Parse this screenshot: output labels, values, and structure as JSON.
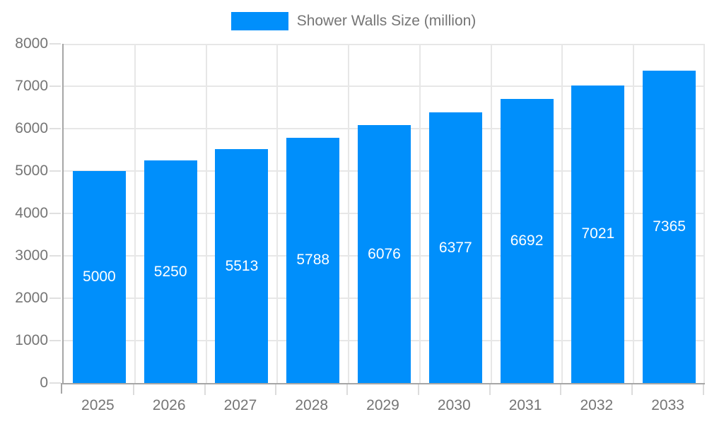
{
  "legend": {
    "label": "Shower Walls Size (million)"
  },
  "colors": {
    "accent": "#008FFB",
    "gridline": "#e7e7e7",
    "axis": "#a6a6a6",
    "tick": "#dcdcdc",
    "axis_label": "#757575",
    "bar_label": "#ffffff",
    "background": "#ffffff"
  },
  "chart_data": {
    "type": "bar",
    "title": "Shower Walls Size (million)",
    "categories": [
      "2025",
      "2026",
      "2027",
      "2028",
      "2029",
      "2030",
      "2031",
      "2032",
      "2033"
    ],
    "series": [
      {
        "name": "Shower Walls Size (million)",
        "values": [
          5000,
          5250,
          5513,
          5788,
          6076,
          6377,
          6692,
          7021,
          7365
        ]
      }
    ],
    "data_labels": [
      5000,
      5250,
      5513,
      5788,
      6076,
      6377,
      6692,
      7021,
      7365
    ],
    "xlabel": "",
    "ylabel": "",
    "ylim": [
      0,
      8000
    ],
    "yticks": [
      0,
      1000,
      2000,
      3000,
      4000,
      5000,
      6000,
      7000,
      8000
    ],
    "grid": true,
    "legend_position": "top",
    "bar_color": "#008FFB"
  }
}
